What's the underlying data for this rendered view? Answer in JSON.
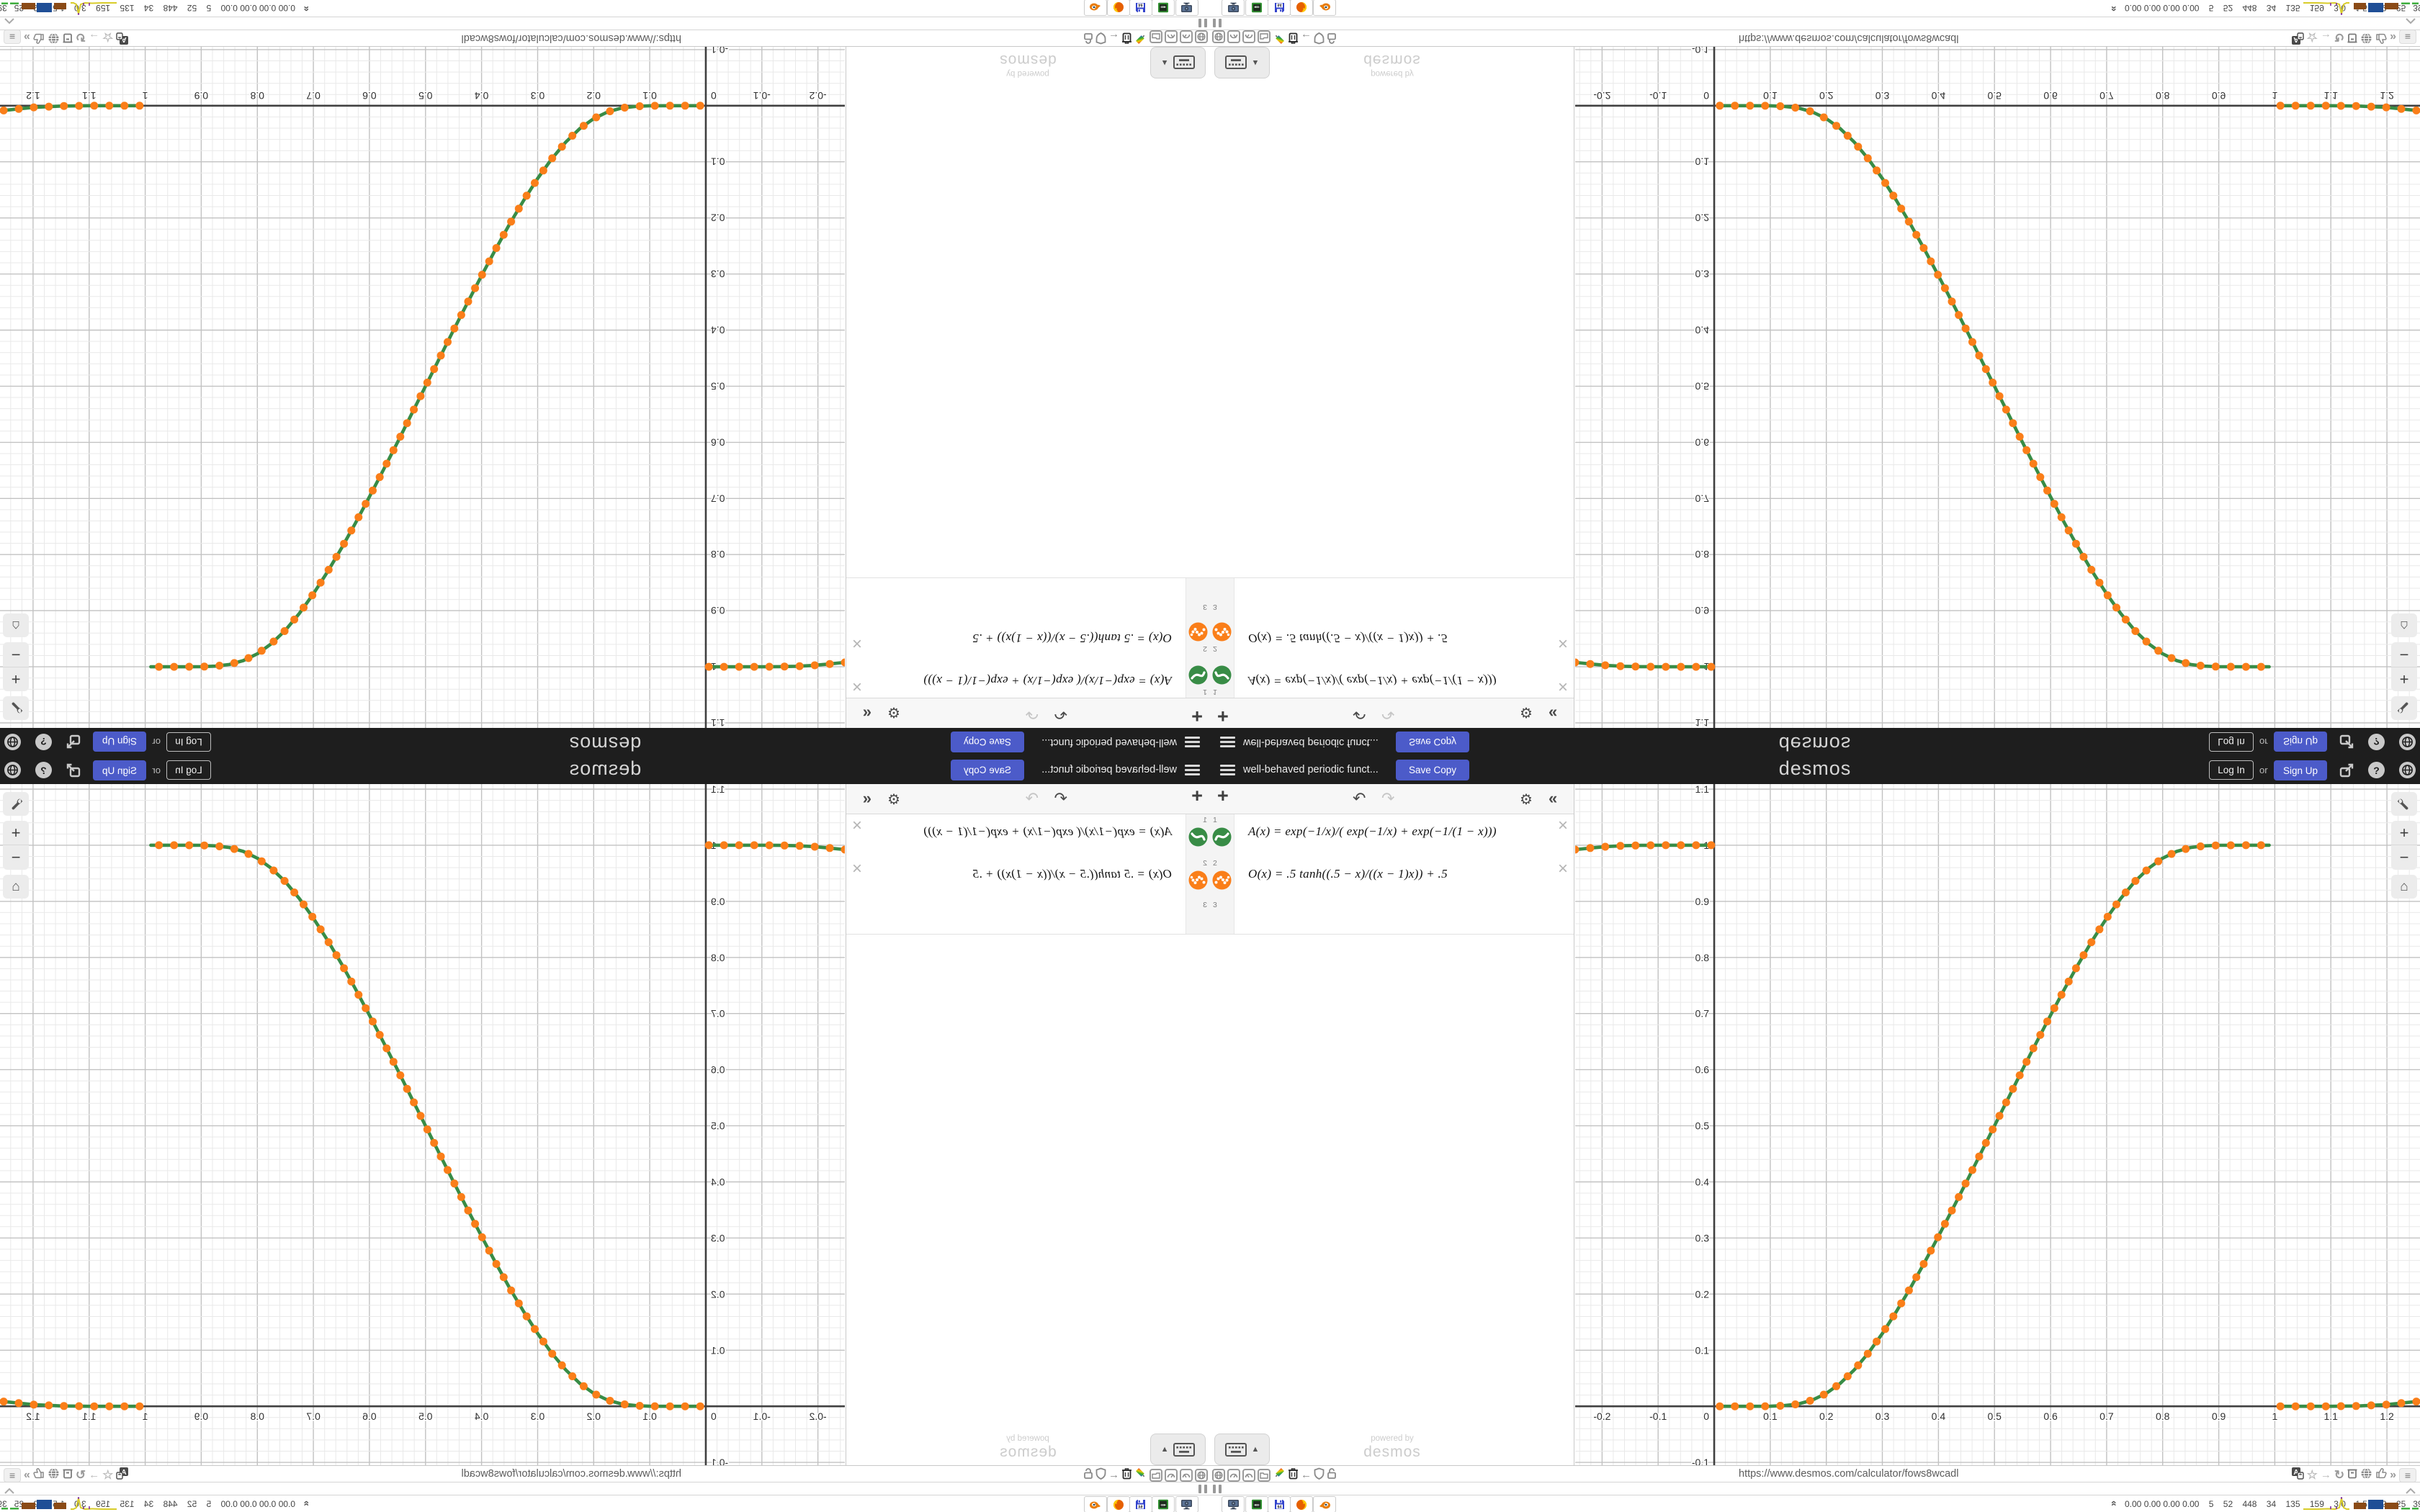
{
  "colors": {
    "header_bg": "#1e1e1e",
    "brand_blue": "#4c5bc9",
    "curve_green": "#388c46",
    "curve_orange": "#fa7e19"
  },
  "tile": {
    "header": {
      "title": "well-behaved periodic funct...",
      "save_copy": "Save Copy",
      "wordmark": "desmos",
      "log_in": "Log In",
      "or": "or",
      "sign_up": "Sign Up"
    },
    "expressions": {
      "add_label": "+",
      "undo_label": "↶",
      "redo_label": "↷",
      "settings_label": "⚙",
      "collapse_label": "«",
      "rows": [
        {
          "number": "1",
          "formula": "A(x) = exp(−1/x)/( exp(−1/x) + exp(−1/(1 − x)))",
          "delete_label": "×"
        },
        {
          "number": "2",
          "formula": "O(x) = .5 tanh((.5 − x)/((x − 1)x)) + .5",
          "delete_label": "×"
        },
        {
          "number": "3",
          "formula": ""
        }
      ],
      "powered_by": "powered by",
      "powered_brand": "desmos",
      "keyboard_expand": "▲"
    },
    "graph_controls": {
      "zoom_in": "+",
      "zoom_out": "−",
      "home": "⌂"
    },
    "browser": {
      "url": "https://www.desmos.com/calculator/fows8wcadl",
      "back_label": "←",
      "star_label": "☆",
      "forward_label": "→",
      "refresh_label": "↻",
      "more_label": "»",
      "menu_label": "≡",
      "tray_chevron": "«",
      "tray_text": "0.00 0.00 0.00 0.00    5    52    448    34    135    159    3.0    1.5    32    25   39974775"
    }
  },
  "chart_data": {
    "type": "line",
    "title": "",
    "xlabel": "",
    "ylabel": "",
    "x_range": [
      -0.248,
      1.259
    ],
    "y_range": [
      -0.105,
      1.109
    ],
    "minor_grid_step": 0.02,
    "major_grid_step": 0.1,
    "grid": true,
    "x_tick_labels": [
      "-0.2",
      "-0.1",
      "0.1",
      "0.2",
      "0.3",
      "0.4",
      "0.5",
      "0.6",
      "0.7",
      "0.8",
      "0.9",
      "1",
      "1.1",
      "1.2"
    ],
    "y_tick_labels": [
      "-0.1",
      "0.1",
      "0.2",
      "0.3",
      "0.4",
      "0.5",
      "0.6",
      "0.7",
      "0.8",
      "0.9",
      "1",
      "1.1"
    ],
    "origin_label": "0",
    "series": [
      {
        "name": "A(x) = exp(-1/x)/(exp(-1/x)+exp(-1/(1-x)))",
        "color": "#388c46",
        "style": "solid",
        "line_width": 4.6
      },
      {
        "name": "O(x) = .5 tanh((.5-x)/((x-1)x)) + .5",
        "color": "#fa7e19",
        "style": "dotted",
        "dot_radius": 5.5,
        "dot_spacing": 21
      }
    ],
    "branches": [
      [
        [
          -0.248,
          0.9922
        ],
        [
          -0.22,
          0.9951
        ],
        [
          -0.19,
          0.9978
        ],
        [
          -0.16,
          0.9992
        ],
        [
          -0.13,
          0.9998
        ],
        [
          -0.1,
          1.0
        ],
        [
          -0.06,
          1.0
        ],
        [
          -0.02,
          1.0
        ],
        [
          -0.003,
          1.0
        ]
      ],
      [
        [
          0.01,
          0.0
        ],
        [
          0.05,
          0.0
        ],
        [
          0.1,
          0.0001
        ],
        [
          0.125,
          0.0012
        ],
        [
          0.15,
          0.0041
        ],
        [
          0.175,
          0.011
        ],
        [
          0.2,
          0.0229
        ],
        [
          0.225,
          0.041
        ],
        [
          0.25,
          0.065
        ],
        [
          0.275,
          0.095
        ],
        [
          0.3,
          0.1297
        ],
        [
          0.325,
          0.169
        ],
        [
          0.35,
          0.211
        ],
        [
          0.375,
          0.256
        ],
        [
          0.4,
          0.303
        ],
        [
          0.425,
          0.351
        ],
        [
          0.45,
          0.4
        ],
        [
          0.475,
          0.45
        ],
        [
          0.5,
          0.5
        ],
        [
          0.525,
          0.55
        ],
        [
          0.55,
          0.6
        ],
        [
          0.575,
          0.649
        ],
        [
          0.6,
          0.697
        ],
        [
          0.625,
          0.744
        ],
        [
          0.65,
          0.789
        ],
        [
          0.675,
          0.831
        ],
        [
          0.7,
          0.87
        ],
        [
          0.725,
          0.905
        ],
        [
          0.75,
          0.935
        ],
        [
          0.775,
          0.959
        ],
        [
          0.8,
          0.977
        ],
        [
          0.825,
          0.989
        ],
        [
          0.85,
          0.9959
        ],
        [
          0.875,
          0.9989
        ],
        [
          0.9,
          0.9999
        ],
        [
          0.95,
          1.0
        ],
        [
          0.99,
          1.0
        ]
      ],
      [
        [
          1.01,
          0.0
        ],
        [
          1.05,
          0.0
        ],
        [
          1.1,
          0.0
        ],
        [
          1.15,
          0.0006
        ],
        [
          1.2,
          0.003
        ],
        [
          1.25,
          0.0082
        ],
        [
          1.259,
          0.0093
        ]
      ]
    ]
  }
}
